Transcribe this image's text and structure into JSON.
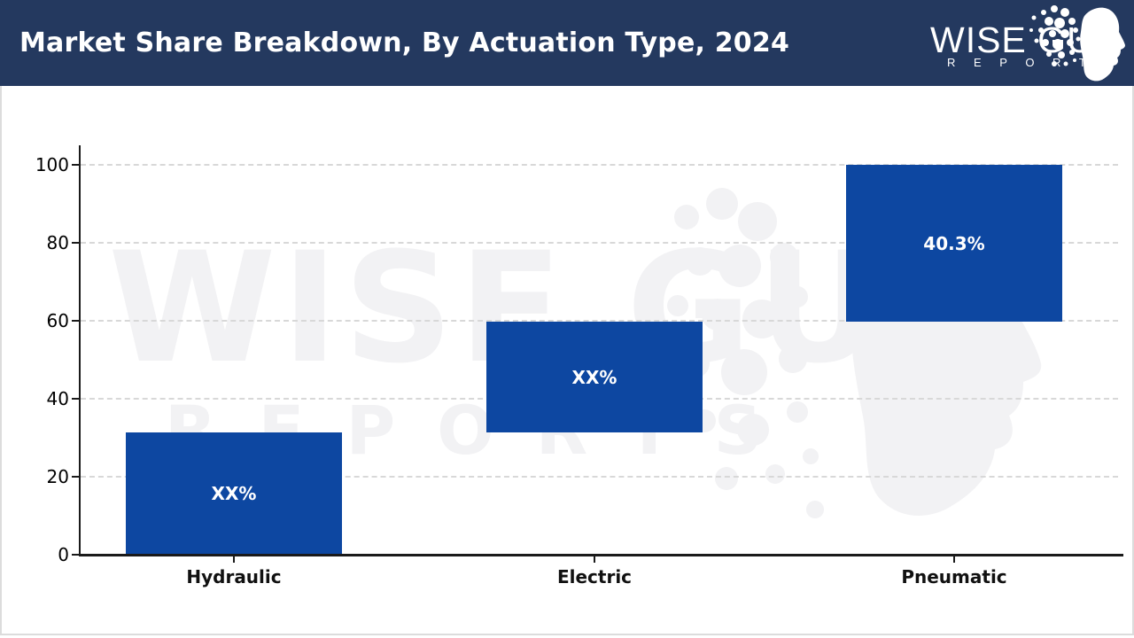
{
  "header": {
    "title": "Market Share Breakdown, By Actuation Type, 2024",
    "logo": {
      "line1": "WISE GUY",
      "line2": "R E P O R T S"
    }
  },
  "watermark": {
    "line1": "WISE GUY",
    "line2": "REPORTS"
  },
  "chart_data": {
    "type": "bar",
    "subtype": "waterfall",
    "title": "Market Share Breakdown, By Actuation Type, 2024",
    "categories": [
      "Hydraulic",
      "Electric",
      "Pneumatic"
    ],
    "segments": [
      {
        "category": "Hydraulic",
        "start": 0,
        "end": 31.4,
        "value_label": "XX%"
      },
      {
        "category": "Electric",
        "start": 31.4,
        "end": 59.7,
        "value_label": "XX%"
      },
      {
        "category": "Pneumatic",
        "start": 59.7,
        "end": 100,
        "value_label": "40.3%"
      }
    ],
    "ylim": [
      0,
      100
    ],
    "yticks": [
      0,
      20,
      40,
      60,
      80,
      100
    ],
    "grid": {
      "horizontal": true,
      "style": "dashed"
    },
    "legend": null,
    "colors": {
      "bar": "#0D47A1",
      "bar_label": "#FFFFFF",
      "header_bg": "#24395F",
      "grid": "#D8D8D8",
      "axis": "#1A1A1A",
      "watermark": "#F2F2F4"
    }
  }
}
